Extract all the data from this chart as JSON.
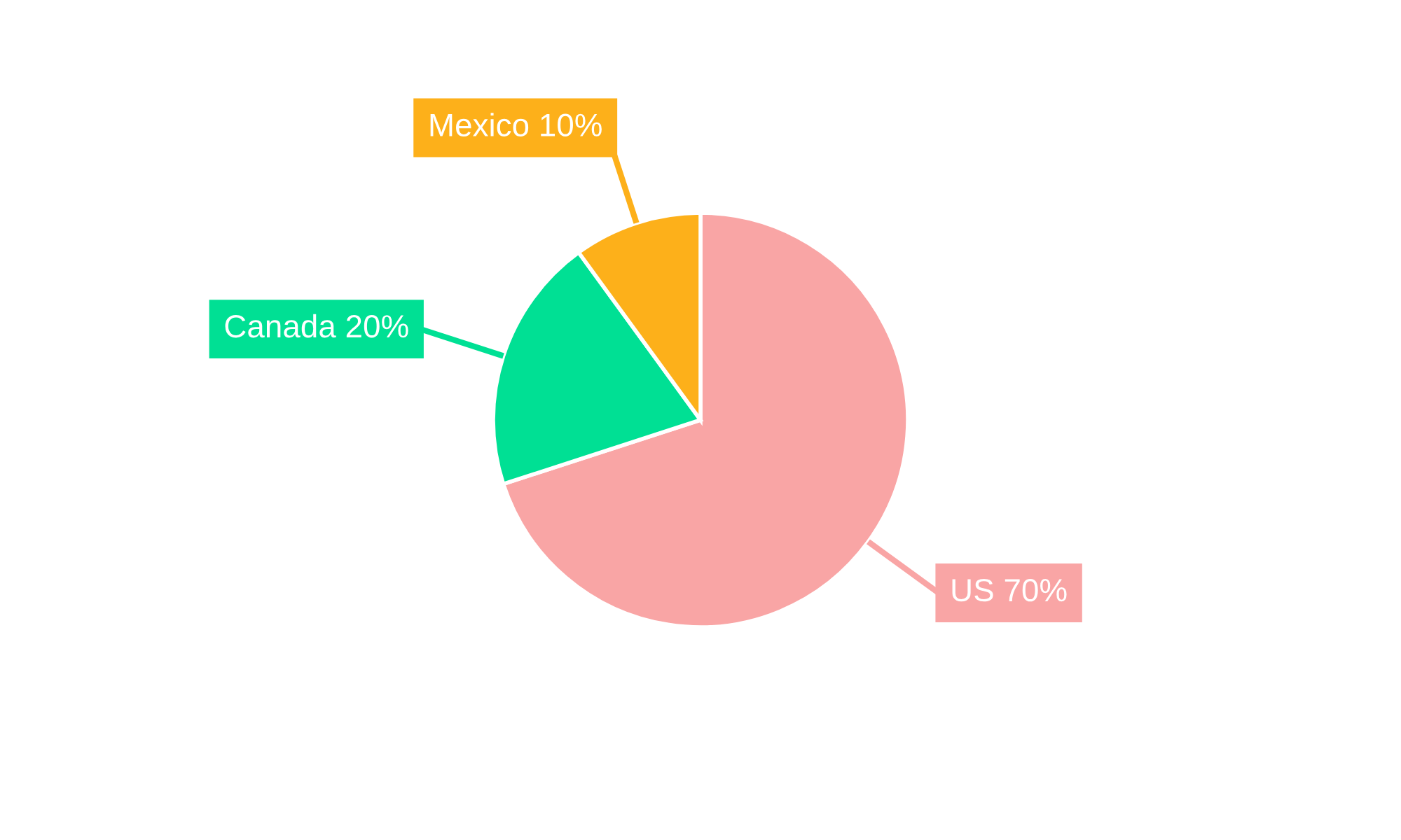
{
  "chart_data": {
    "type": "pie",
    "categories": [
      "US",
      "Canada",
      "Mexico"
    ],
    "values": [
      70,
      20,
      10
    ],
    "colors": [
      "#f9a5a5",
      "#00e094",
      "#fdb01a"
    ],
    "value_labels": [
      "70%",
      "20%",
      "10%"
    ]
  }
}
